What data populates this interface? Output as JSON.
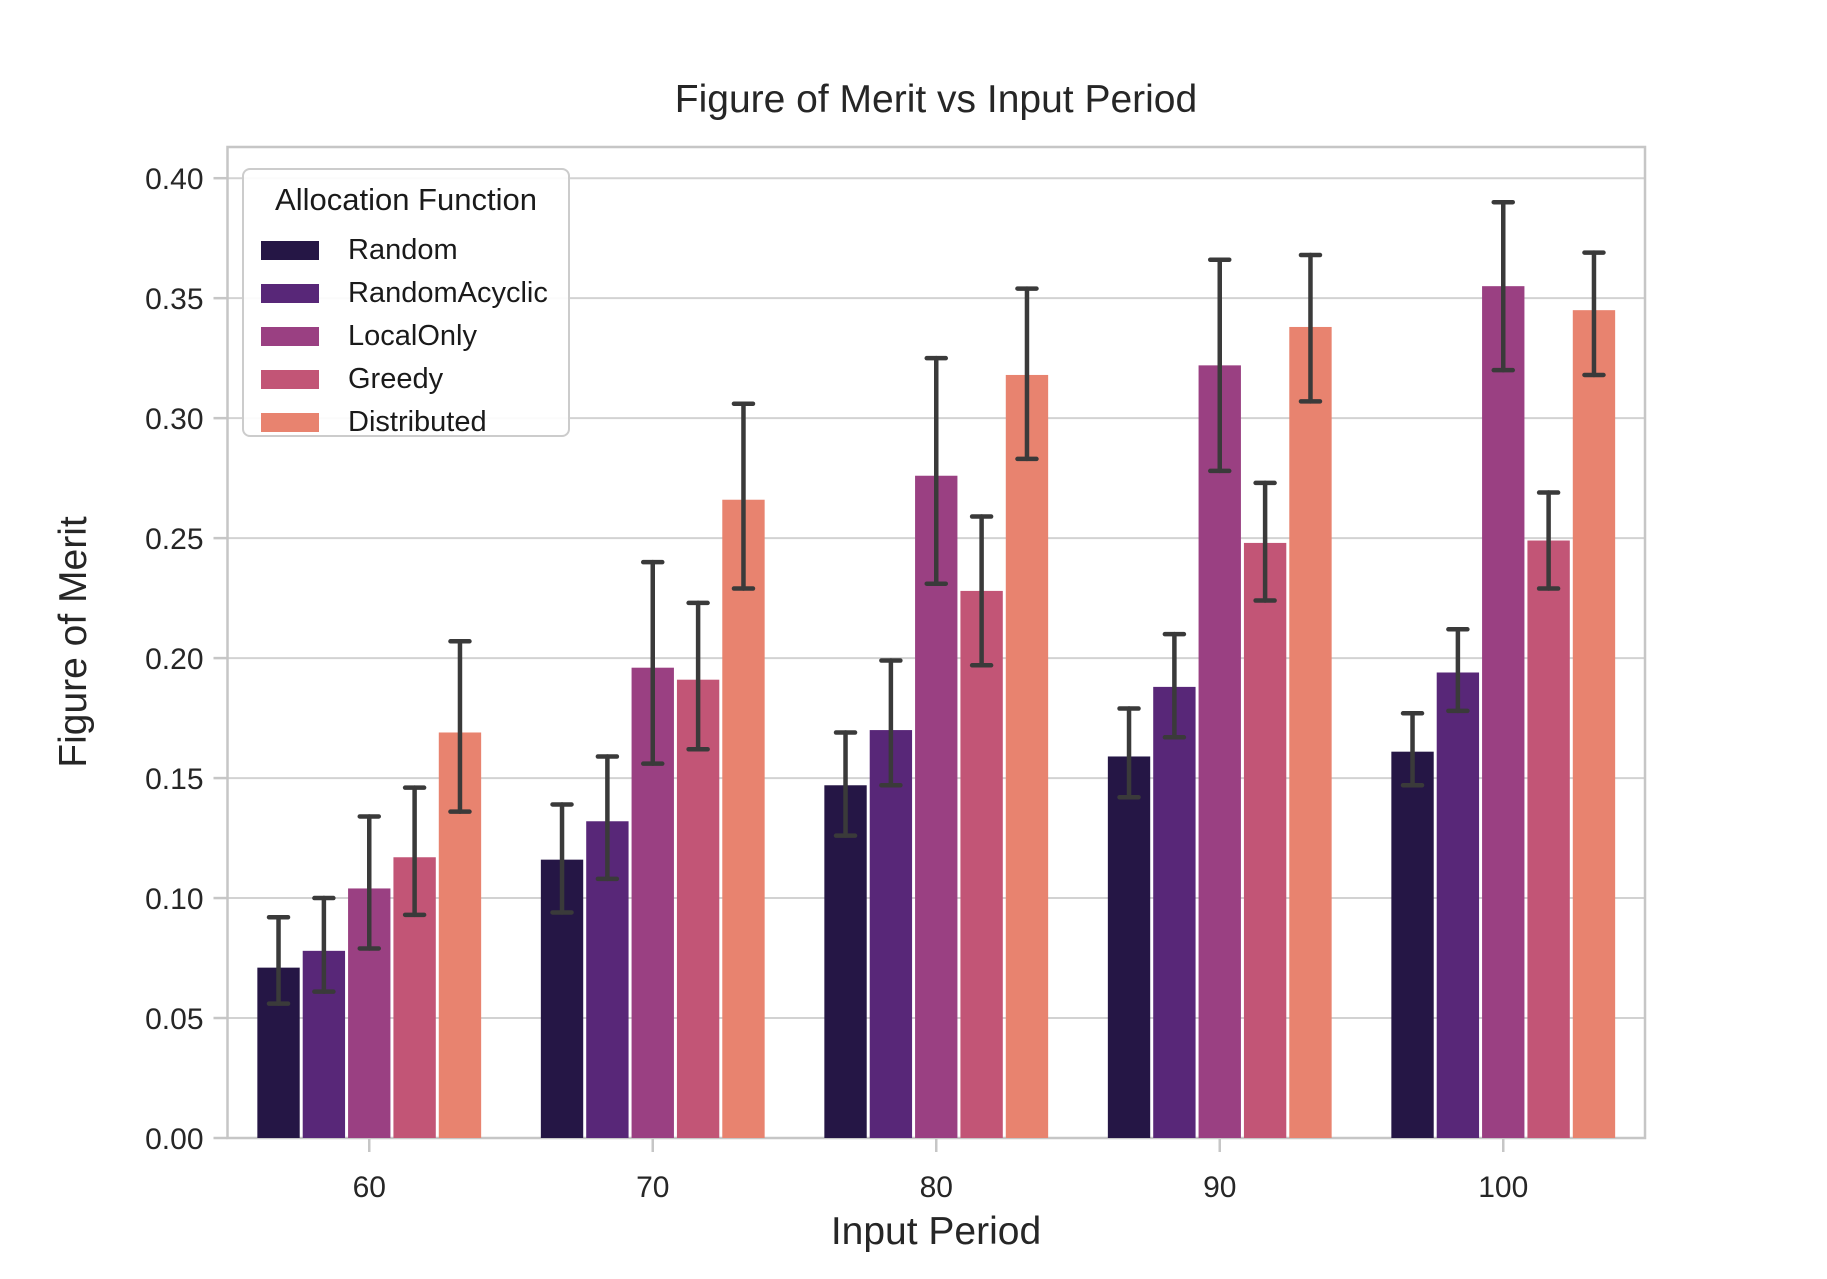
{
  "chart_data": {
    "type": "bar",
    "title": "Figure of Merit vs Input Period",
    "xlabel": "Input Period",
    "ylabel": "Figure of Merit",
    "categories": [
      "60",
      "70",
      "80",
      "90",
      "100"
    ],
    "ylim": [
      0,
      0.413
    ],
    "yticks": [
      {
        "value": 0.0,
        "label": "0.00"
      },
      {
        "value": 0.05,
        "label": "0.05"
      },
      {
        "value": 0.1,
        "label": "0.10"
      },
      {
        "value": 0.15,
        "label": "0.15"
      },
      {
        "value": 0.2,
        "label": "0.20"
      },
      {
        "value": 0.25,
        "label": "0.25"
      },
      {
        "value": 0.3,
        "label": "0.30"
      },
      {
        "value": 0.35,
        "label": "0.35"
      },
      {
        "value": 0.4,
        "label": "0.40"
      }
    ],
    "grid": "horizontal",
    "legend": {
      "title": "Allocation Function",
      "position": "upper-left"
    },
    "series": [
      {
        "name": "Random",
        "color": "#251645",
        "values": [
          0.071,
          0.116,
          0.147,
          0.159,
          0.161
        ],
        "err_low": [
          0.056,
          0.094,
          0.126,
          0.142,
          0.147
        ],
        "err_high": [
          0.092,
          0.139,
          0.169,
          0.179,
          0.177
        ]
      },
      {
        "name": "RandomAcyclic",
        "color": "#582778",
        "values": [
          0.078,
          0.132,
          0.17,
          0.188,
          0.194
        ],
        "err_low": [
          0.061,
          0.108,
          0.147,
          0.167,
          0.178
        ],
        "err_high": [
          0.1,
          0.159,
          0.199,
          0.21,
          0.212
        ]
      },
      {
        "name": "LocalOnly",
        "color": "#9a4082",
        "values": [
          0.104,
          0.196,
          0.276,
          0.322,
          0.355
        ],
        "err_low": [
          0.079,
          0.156,
          0.231,
          0.278,
          0.32
        ],
        "err_high": [
          0.134,
          0.24,
          0.325,
          0.366,
          0.39
        ]
      },
      {
        "name": "Greedy",
        "color": "#c25576",
        "values": [
          0.117,
          0.191,
          0.228,
          0.248,
          0.249
        ],
        "err_low": [
          0.093,
          0.162,
          0.197,
          0.224,
          0.229
        ],
        "err_high": [
          0.146,
          0.223,
          0.259,
          0.273,
          0.269
        ]
      },
      {
        "name": "Distributed",
        "color": "#e8836f",
        "values": [
          0.169,
          0.266,
          0.318,
          0.338,
          0.345
        ],
        "err_low": [
          0.136,
          0.229,
          0.283,
          0.307,
          0.318
        ],
        "err_high": [
          0.207,
          0.306,
          0.354,
          0.368,
          0.369
        ]
      }
    ],
    "style": {
      "background": "#ffffff",
      "grid_color": "#d2d2d2",
      "spine_color": "#c6c6c6",
      "tick_color": "#c6c6c6",
      "error_bar_color": "#3a3a3a",
      "text_color": "#262626"
    }
  }
}
